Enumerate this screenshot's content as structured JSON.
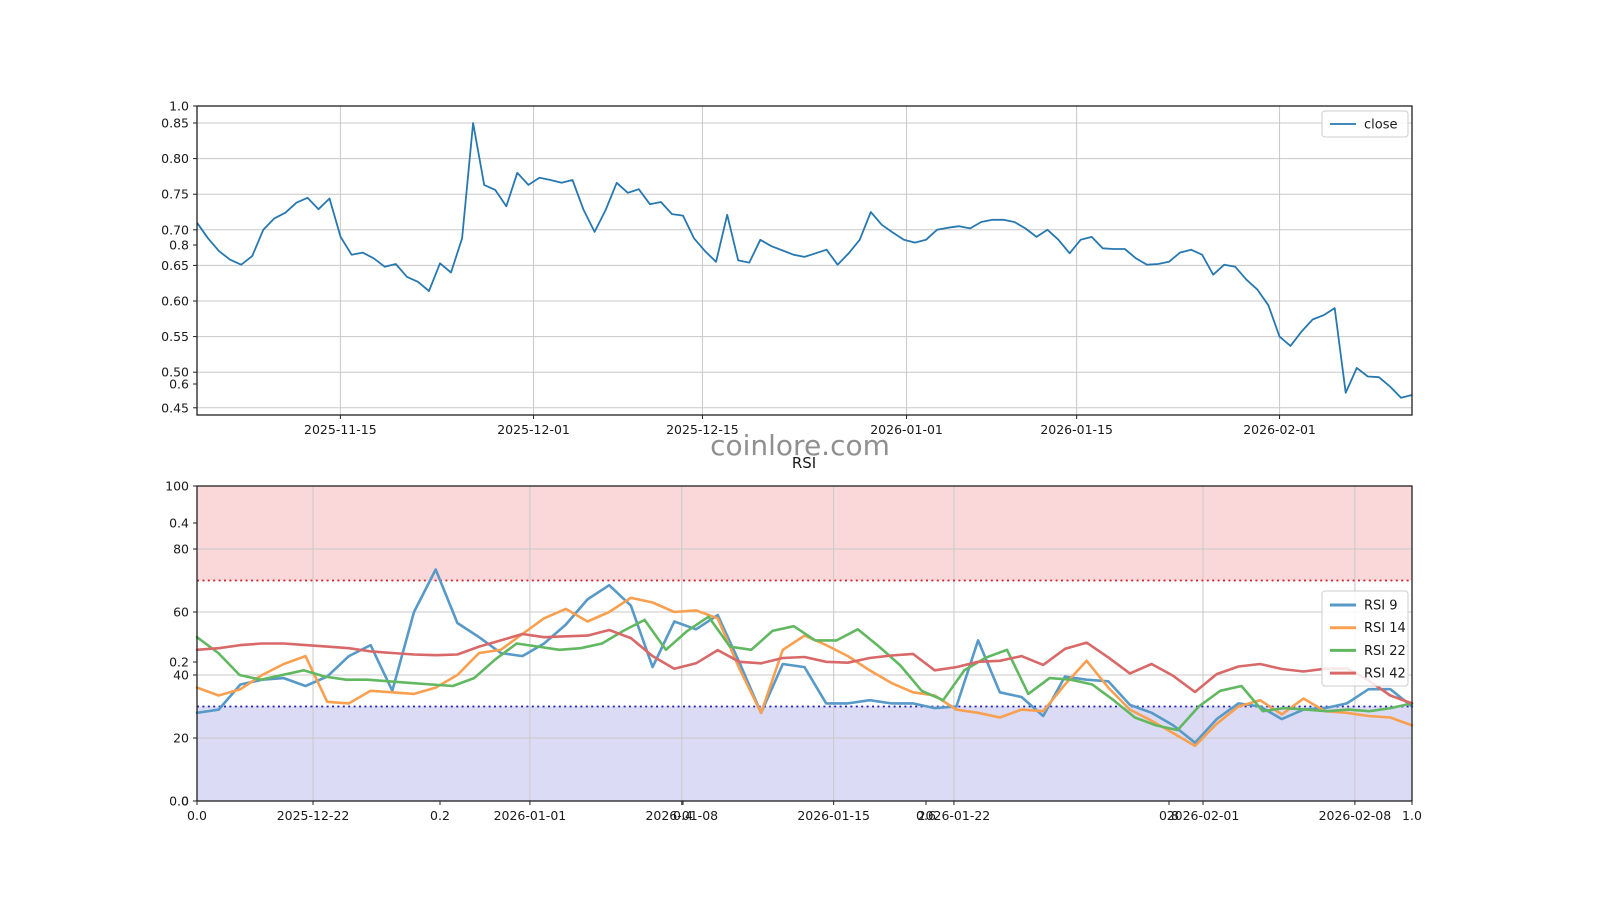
{
  "watermark": "coinlore.com",
  "overlay_axis": {
    "x_ticks": [
      "0.0",
      "0.2",
      "0.4",
      "0.6",
      "0.8",
      "1.0"
    ],
    "y_ticks": [
      "1.0",
      "0.8",
      "0.6",
      "0.4",
      "0.2",
      "0.0"
    ]
  },
  "chart_data": [
    {
      "type": "line",
      "name": "price",
      "grid": true,
      "legend_position": "upper right",
      "ylim": [
        0.44,
        0.874
      ],
      "y_ticks": [
        {
          "label": "0.85",
          "v": 0.85
        },
        {
          "label": "0.80",
          "v": 0.8
        },
        {
          "label": "0.75",
          "v": 0.75
        },
        {
          "label": "0.70",
          "v": 0.7
        },
        {
          "label": "0.65",
          "v": 0.65
        },
        {
          "label": "0.60",
          "v": 0.6
        },
        {
          "label": "0.55",
          "v": 0.55
        },
        {
          "label": "0.50",
          "v": 0.5
        },
        {
          "label": "0.45",
          "v": 0.45
        }
      ],
      "x_ticks": [
        {
          "label": "2025-11-15",
          "f": 0.118
        },
        {
          "label": "2025-12-01",
          "f": 0.277
        },
        {
          "label": "2025-12-15",
          "f": 0.416
        },
        {
          "label": "2026-01-01",
          "f": 0.584
        },
        {
          "label": "2026-01-15",
          "f": 0.724
        },
        {
          "label": "2026-02-01",
          "f": 0.891
        }
      ],
      "series": [
        {
          "name": "close",
          "color": "#2878b0",
          "width": 1.8,
          "values": [
            0.71,
            0.688,
            0.67,
            0.658,
            0.651,
            0.663,
            0.7,
            0.716,
            0.724,
            0.738,
            0.745,
            0.729,
            0.744,
            0.69,
            0.665,
            0.668,
            0.66,
            0.648,
            0.652,
            0.634,
            0.627,
            0.614,
            0.653,
            0.64,
            0.688,
            0.85,
            0.763,
            0.756,
            0.733,
            0.78,
            0.763,
            0.773,
            0.77,
            0.766,
            0.77,
            0.728,
            0.697,
            0.728,
            0.766,
            0.752,
            0.757,
            0.736,
            0.739,
            0.722,
            0.72,
            0.688,
            0.67,
            0.655,
            0.721,
            0.657,
            0.654,
            0.686,
            0.677,
            0.671,
            0.665,
            0.662,
            0.667,
            0.672,
            0.651,
            0.667,
            0.686,
            0.725,
            0.707,
            0.696,
            0.686,
            0.682,
            0.686,
            0.7,
            0.703,
            0.705,
            0.702,
            0.711,
            0.714,
            0.714,
            0.711,
            0.702,
            0.69,
            0.7,
            0.686,
            0.667,
            0.686,
            0.69,
            0.674,
            0.673,
            0.673,
            0.66,
            0.651,
            0.652,
            0.655,
            0.668,
            0.672,
            0.665,
            0.637,
            0.651,
            0.648,
            0.63,
            0.616,
            0.594,
            0.55,
            0.537,
            0.557,
            0.574,
            0.58,
            0.59,
            0.471,
            0.506,
            0.494,
            0.493,
            0.48,
            0.464,
            0.468
          ]
        }
      ]
    },
    {
      "type": "line",
      "name": "rsi",
      "title": "RSI",
      "grid": true,
      "legend_position": "right",
      "ylim": [
        0,
        100
      ],
      "bands": [
        {
          "from": 70,
          "to": 100,
          "color": "#fad8da",
          "name": "overbought-band"
        },
        {
          "from": 0,
          "to": 30,
          "color": "#dcdbf5",
          "name": "oversold-band"
        }
      ],
      "ref_lines": [
        {
          "v": 70,
          "color": "#d62030",
          "name": "overbought-line"
        },
        {
          "v": 30,
          "color": "#2121b5",
          "name": "oversold-line"
        }
      ],
      "y_ticks": [
        {
          "label": "100",
          "v": 100
        },
        {
          "label": "80",
          "v": 80
        },
        {
          "label": "60",
          "v": 60
        },
        {
          "label": "40",
          "v": 40
        },
        {
          "label": "20",
          "v": 20
        },
        {
          "label": "0",
          "v": 0
        }
      ],
      "x_ticks": [
        {
          "label": "2025-12-22",
          "f": 0.0955
        },
        {
          "label": "2026-01-01",
          "f": 0.274
        },
        {
          "label": "2026-01-08",
          "f": 0.399
        },
        {
          "label": "2026-01-15",
          "f": 0.524
        },
        {
          "label": "2026-01-22",
          "f": 0.623
        },
        {
          "label": "2026-02-01",
          "f": 0.828
        },
        {
          "label": "2026-02-08",
          "f": 0.953
        }
      ],
      "series": [
        {
          "name": "RSI 9",
          "color": "#5799c7",
          "width": 2.6,
          "values": [
            28,
            29,
            37,
            38.5,
            39,
            36.5,
            39.5,
            46,
            49.5,
            35,
            60,
            73.5,
            56.5,
            52,
            47,
            46,
            50,
            56,
            64,
            68.5,
            62,
            42.5,
            57,
            54.5,
            59,
            44,
            28,
            43.5,
            42.5,
            31,
            31,
            32,
            31,
            31,
            29.5,
            30,
            51,
            34.5,
            33,
            27,
            39.5,
            38.5,
            38,
            30.5,
            28,
            24,
            18.5,
            26,
            31,
            30,
            26,
            29,
            29.5,
            31,
            35.5,
            35.5,
            30
          ]
        },
        {
          "name": "RSI 14",
          "color": "#f9a050",
          "width": 2.6,
          "values": [
            36,
            33.5,
            35.5,
            40,
            43.5,
            46,
            31.5,
            31,
            35,
            34.5,
            34,
            36,
            40,
            47,
            48,
            53,
            58,
            61,
            57,
            60,
            64.5,
            63,
            60,
            60.5,
            58,
            42,
            28,
            48,
            52.5,
            49.5,
            46,
            41.5,
            37.5,
            34.5,
            33.5,
            29,
            28,
            26.5,
            29,
            28.5,
            37,
            44.5,
            36,
            29,
            25.5,
            21.5,
            17.5,
            24.5,
            30,
            32,
            27.5,
            32.5,
            28.5,
            28,
            27,
            26.5,
            24
          ]
        },
        {
          "name": "RSI 22",
          "color": "#61b861",
          "width": 2.6,
          "values": [
            52,
            47,
            40,
            38.5,
            40,
            41.5,
            39.5,
            38.5,
            38.5,
            38,
            37.5,
            37,
            36.5,
            39,
            45,
            50,
            49,
            48,
            48.5,
            50,
            54,
            57.5,
            48,
            54,
            58.5,
            49,
            48,
            54,
            55.5,
            51,
            51,
            54.5,
            49,
            43,
            35,
            32,
            41.5,
            45.5,
            48,
            34,
            39,
            38.5,
            37,
            32,
            26.5,
            24,
            22.5,
            30,
            35,
            36.5,
            28.5,
            29.5,
            29,
            28.5,
            29,
            28.5,
            29.5,
            31
          ]
        },
        {
          "name": "RSI 42",
          "color": "#d96868",
          "width": 2.6,
          "values": [
            48,
            48.5,
            49.5,
            50,
            50,
            49.5,
            49,
            48.5,
            47.5,
            47,
            46.5,
            46.3,
            46.5,
            49,
            51,
            53,
            52,
            52.3,
            52.5,
            54.3,
            51.7,
            46,
            42,
            43.7,
            47.9,
            44.2,
            43.7,
            45.4,
            45.7,
            44.2,
            43.9,
            45.4,
            46.2,
            46.7,
            41.5,
            42.5,
            44.2,
            44.5,
            46,
            43.2,
            48.3,
            50.3,
            45.6,
            40.5,
            43.5,
            39.7,
            34.6,
            40.3,
            42.7,
            43.5,
            41.9,
            41.1,
            42,
            42.1,
            38.3,
            33.5,
            31
          ]
        }
      ]
    }
  ]
}
